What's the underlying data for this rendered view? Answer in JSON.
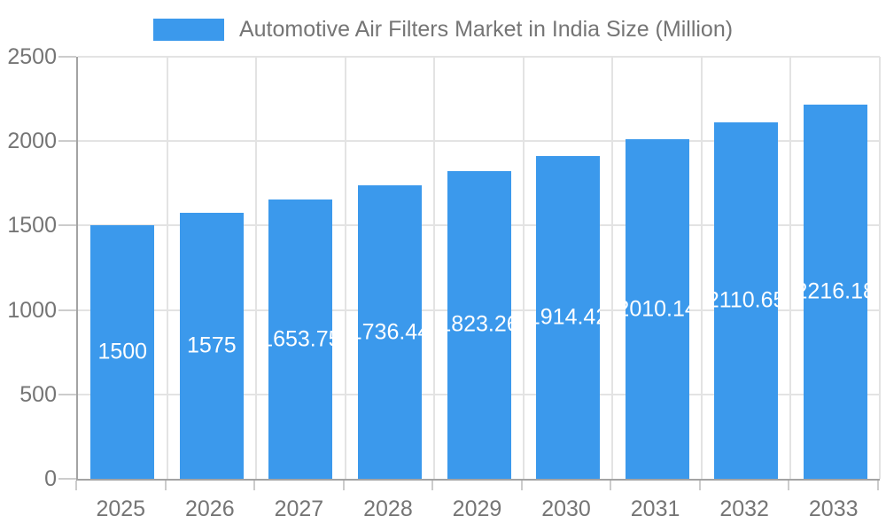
{
  "chart_data": {
    "type": "bar",
    "title": "Automotive Air Filters Market in India Size (Million)",
    "legend": {
      "position": "top",
      "items": [
        {
          "label": "Automotive Air Filters Market in India Size (Million)",
          "color": "#3b99ec"
        }
      ]
    },
    "categories": [
      "2025",
      "2026",
      "2027",
      "2028",
      "2029",
      "2030",
      "2031",
      "2032",
      "2033"
    ],
    "series": [
      {
        "name": "Automotive Air Filters Market in India Size (Million)",
        "color": "#3b99ec",
        "values": [
          1500,
          1575,
          1653.75,
          1736.44,
          1823.26,
          1914.42,
          2010.14,
          2110.65,
          2216.18
        ],
        "value_labels": [
          "1500",
          "1575",
          "1653.75",
          "1736.44",
          "1823.26",
          "1914.42",
          "2010.14",
          "2110.65",
          "2216.18"
        ]
      }
    ],
    "xlabel": "",
    "ylabel": "",
    "ylim": [
      0,
      2500
    ],
    "y_ticks": [
      "0",
      "500",
      "1000",
      "1500",
      "2000",
      "2500"
    ],
    "grid": true,
    "value_label_position": "center-of-bar",
    "value_label_color": "#ffffff"
  },
  "colors": {
    "background": "#ffffff",
    "bar": "#3b99ec",
    "axis_text": "#757575",
    "grid_line": "#e3e3e3",
    "axis_line": "#a3a3a3",
    "tick": "#cccccc",
    "value_label": "#ffffff"
  }
}
